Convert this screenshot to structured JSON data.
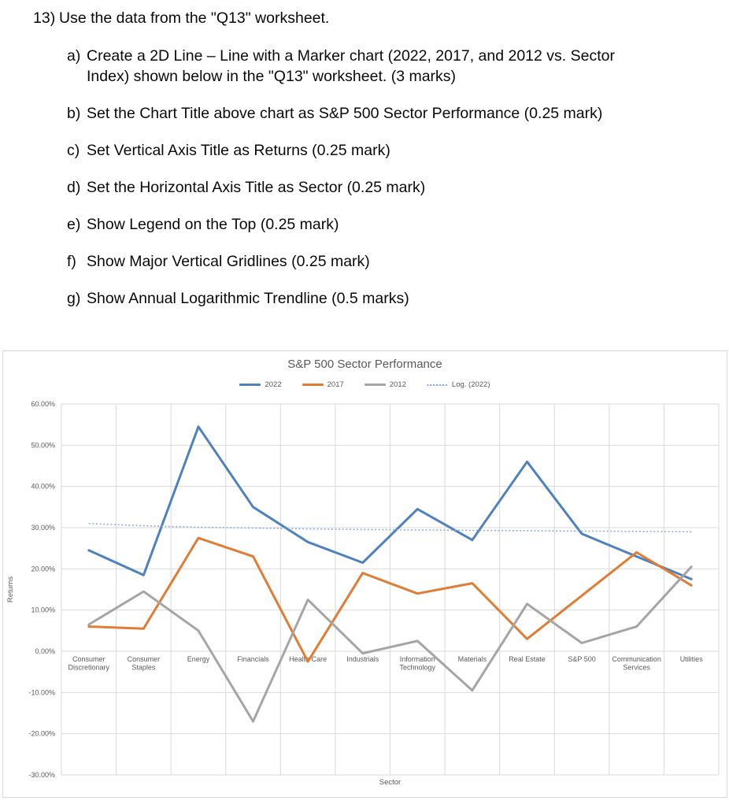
{
  "question": {
    "number": "13)",
    "text": "Use the data from the \"Q13\" worksheet.",
    "items": [
      {
        "letter": "a)",
        "text": "Create a 2D Line – Line with a Marker chart (2022, 2017, and 2012 vs. Sector Index) shown below in the \"Q13\" worksheet. (3 marks)"
      },
      {
        "letter": "b)",
        "text": "Set the Chart Title above chart as S&P 500 Sector Performance (0.25 mark)"
      },
      {
        "letter": "c)",
        "text": "Set Vertical Axis Title as Returns (0.25 mark)"
      },
      {
        "letter": "d)",
        "text": "Set the Horizontal Axis Title as Sector (0.25 mark)"
      },
      {
        "letter": "e)",
        "text": "Show Legend on the Top (0.25 mark)"
      },
      {
        "letter": "f)",
        "text": "Show Major Vertical Gridlines (0.25 mark)"
      },
      {
        "letter": "g)",
        "text": "Show Annual Logarithmic Trendline (0.5 marks)"
      }
    ]
  },
  "chart_data": {
    "type": "line",
    "title": "S&P 500 Sector Performance",
    "xlabel": "Sector",
    "ylabel": "Returns",
    "ylim": [
      -30,
      60
    ],
    "ytick_step": 10,
    "ytick_labels": [
      "60.00%",
      "50.00%",
      "40.00%",
      "30.00%",
      "20.00%",
      "10.00%",
      "0.00%",
      "-10.00%",
      "-20.00%",
      "-30.00%"
    ],
    "grid": "major horizontal and vertical gridlines on",
    "legend_position": "top",
    "categories": [
      "Consumer Discretionary",
      "Consumer Staples",
      "Energy",
      "Financials",
      "Health Care",
      "Industrials",
      "Information Technology",
      "Materials",
      "Real Estate",
      "S&P 500",
      "Communication Services",
      "Utilities"
    ],
    "category_label_lines": [
      [
        "Consumer",
        "Discretionary"
      ],
      [
        "Consumer",
        "Staples"
      ],
      [
        "Energy"
      ],
      [
        "Financials"
      ],
      [
        "Health Care"
      ],
      [
        "Industrials"
      ],
      [
        "Information",
        "Technology"
      ],
      [
        "Materials"
      ],
      [
        "Real Estate"
      ],
      [
        "S&P 500"
      ],
      [
        "Communication",
        "Services"
      ],
      [
        "Utilities"
      ]
    ],
    "unit": "percent",
    "series": [
      {
        "name": "2022",
        "color": "#4E81BD",
        "values": [
          24.5,
          18.5,
          54.5,
          35,
          26.5,
          21.5,
          34.5,
          27,
          46,
          28.5,
          23,
          17.5
        ]
      },
      {
        "name": "2017",
        "color": "#E07C34",
        "values": [
          6,
          5.5,
          27.5,
          23,
          -2.5,
          19,
          14,
          16.5,
          3,
          13.5,
          24,
          16
        ]
      },
      {
        "name": "2012",
        "color": "#A5A5A5",
        "values": [
          6.5,
          14.5,
          5,
          -17,
          12.5,
          -0.5,
          2.5,
          -9.5,
          11.5,
          2,
          6,
          20.5
        ]
      }
    ],
    "trendline": {
      "name": "Log. (2022)",
      "color": "#8FAEDC",
      "style": "dotted",
      "values": [
        31,
        30.45,
        30.1,
        29.9,
        29.7,
        29.55,
        29.45,
        29.35,
        29.25,
        29.15,
        29.1,
        29
      ]
    },
    "colors": {
      "gridline": "#D9D9D9",
      "axis_text": "#595959",
      "title_text": "#595959"
    }
  }
}
